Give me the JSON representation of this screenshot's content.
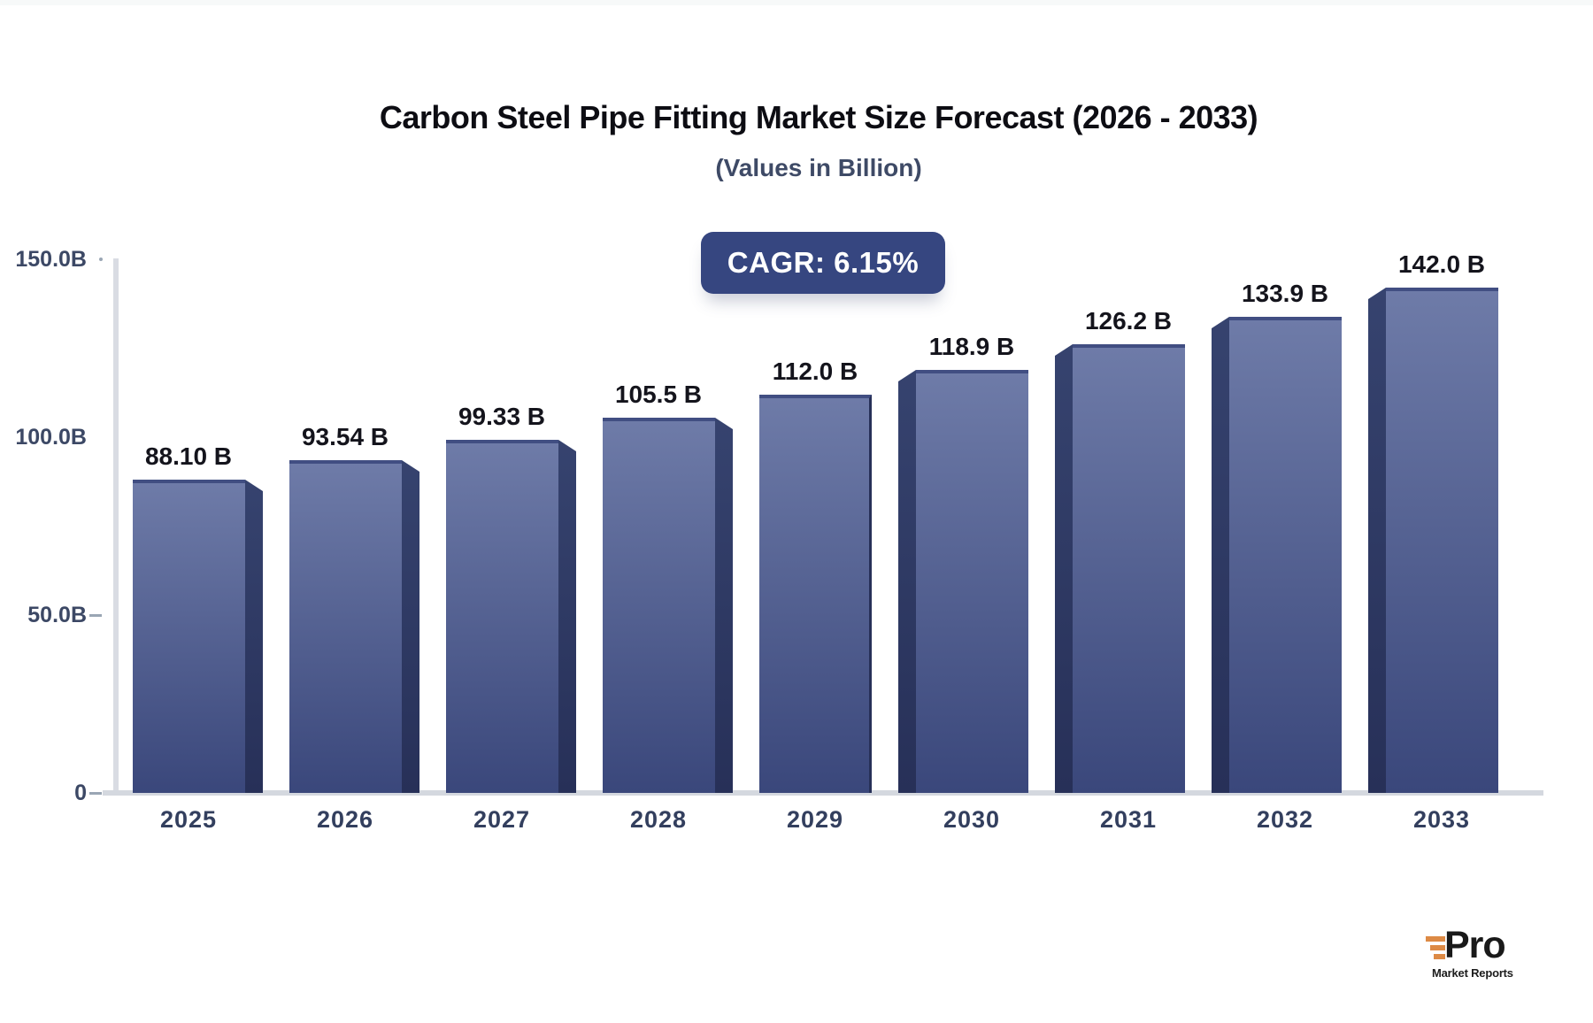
{
  "chart_data": {
    "type": "bar",
    "title": "Carbon Steel Pipe Fitting Market Size Forecast (2026 - 2033)",
    "subtitle": "(Values in Billion)",
    "cagr_label": "CAGR: 6.15%",
    "cagr_percent": 6.15,
    "categories": [
      "2025",
      "2026",
      "2027",
      "2028",
      "2029",
      "2030",
      "2031",
      "2032",
      "2033"
    ],
    "values": [
      88.1,
      93.54,
      99.33,
      105.5,
      112.0,
      118.9,
      126.2,
      133.9,
      142.0
    ],
    "value_labels": [
      "88.10 B",
      "93.54 B",
      "99.33 B",
      "105.5 B",
      "112.0 B",
      "118.9 B",
      "126.2 B",
      "133.9 B",
      "142.0 B"
    ],
    "unit": "Billion",
    "y_axis": {
      "tick_labels": [
        "150.0B",
        "100.0B",
        "50.0B",
        "0"
      ],
      "tick_values": [
        150,
        100,
        50,
        0
      ],
      "tick_marks": [
        "dot",
        "none",
        "dash",
        "dash"
      ],
      "range": [
        0,
        150
      ],
      "grid": false
    },
    "legend": {
      "visible": false
    },
    "bar_3d_side": [
      "right",
      "right",
      "right",
      "right",
      "none",
      "left",
      "left",
      "left",
      "left"
    ],
    "colors": {
      "bar_face_top": "#6e7ba8",
      "bar_face_bottom": "#3a477b",
      "bar_side_top": "#36436f",
      "bar_side_bottom": "#273058",
      "bar_top_edge": "#414e82",
      "badge_bg": "#364680",
      "badge_text": "#ffffff",
      "axis_line": "#d9dce3",
      "baseline": "#d4d8df",
      "tick_mark": "#9aa6b4",
      "y_tick_text": "#3c4865",
      "x_tick_text": "#333f5e",
      "value_label_text": "#14141c",
      "title_text": "#0d0d13",
      "subtitle_text": "#3e4a66"
    }
  },
  "logo": {
    "title": "Pro",
    "subtitle": "Market Reports",
    "accent_color": "#dd8a45"
  }
}
